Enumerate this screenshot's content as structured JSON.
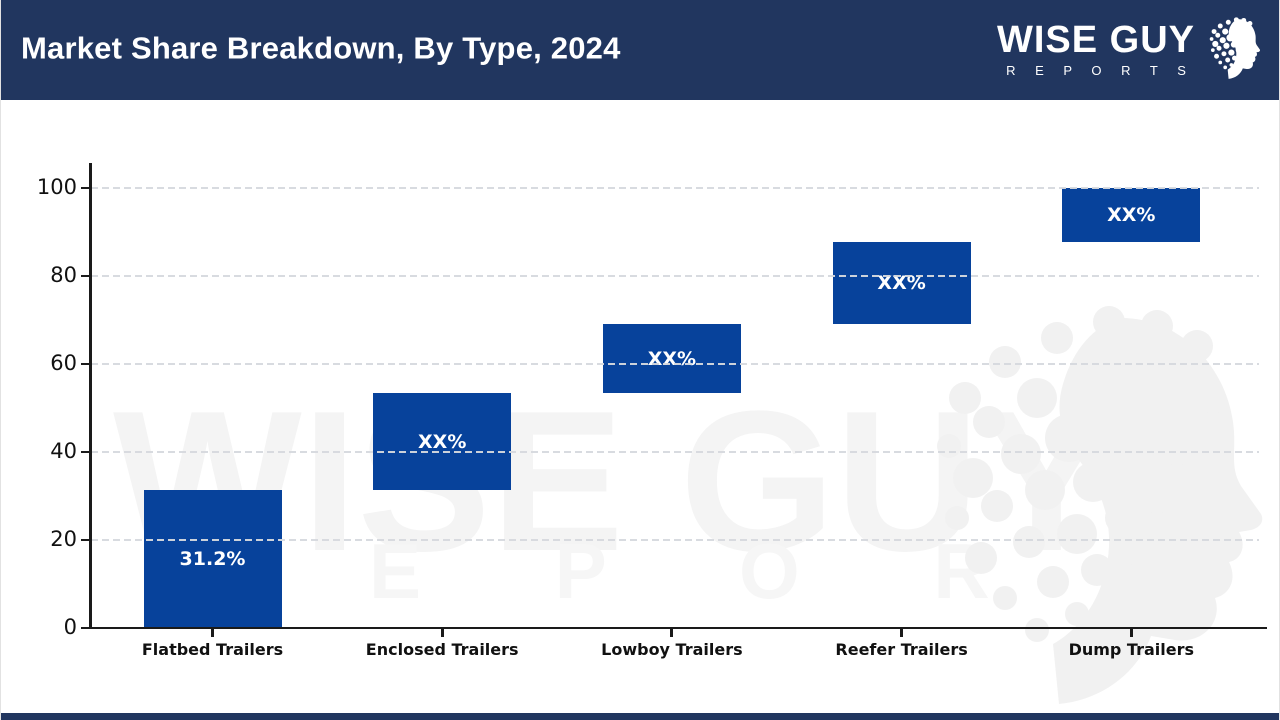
{
  "header": {
    "title": "Market Share Breakdown, By Type, 2024",
    "logo_line1": "WISE GUY",
    "logo_line2": "R E P O R T S"
  },
  "watermark": {
    "line1": "WISE GUY",
    "line2": "R E P O R T S"
  },
  "colors": {
    "header_bg": "#21365f",
    "footer_bg": "#21365f",
    "bar": "#07429b",
    "bar_label": "#ffffff",
    "gridline": "#d6d9de",
    "axis": "#1a1a1a",
    "watermark": "#f4f4f4"
  },
  "chart_data": {
    "type": "bar",
    "subtype": "waterfall",
    "title": "Market Share Breakdown, By Type, 2024",
    "xlabel": "",
    "ylabel": "",
    "categories": [
      "Flatbed Trailers",
      "Enclosed Trailers",
      "Lowboy Trailers",
      "Reefer Trailers",
      "Dump Trailers"
    ],
    "bars": [
      {
        "category": "Flatbed Trailers",
        "start": 0,
        "end": 31.2,
        "value": 31.2,
        "label": "31.2%"
      },
      {
        "category": "Enclosed Trailers",
        "start": 31.2,
        "end": 53.2,
        "value": 22.0,
        "label": "XX%"
      },
      {
        "category": "Lowboy Trailers",
        "start": 53.2,
        "end": 68.9,
        "value": 15.7,
        "label": "XX%"
      },
      {
        "category": "Reefer Trailers",
        "start": 68.9,
        "end": 87.7,
        "value": 18.8,
        "label": "XX%"
      },
      {
        "category": "Dump Trailers",
        "start": 87.7,
        "end": 100.0,
        "value": 12.3,
        "label": "XX%"
      }
    ],
    "ylim": [
      0,
      105
    ],
    "yticks": [
      0,
      20,
      40,
      60,
      80,
      100
    ],
    "grid": "horizontal-dashed",
    "legend": "none"
  }
}
